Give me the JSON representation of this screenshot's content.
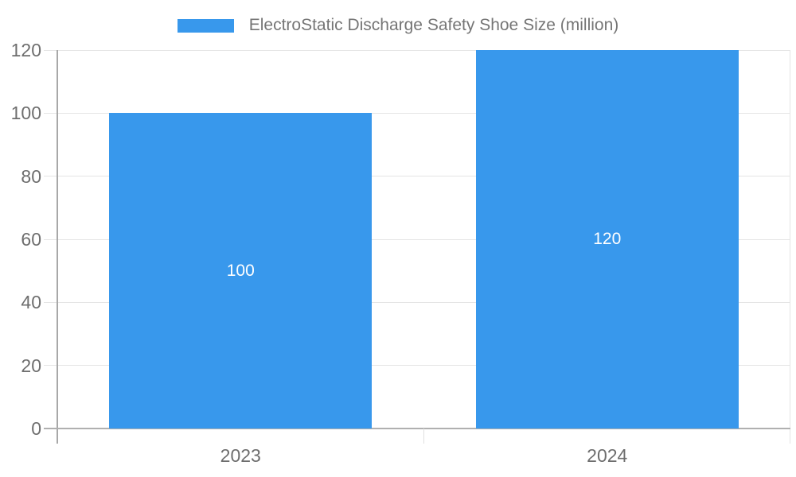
{
  "legend": {
    "label": "ElectroStatic Discharge Safety Shoe Size (million)"
  },
  "chart_data": {
    "type": "bar",
    "title": "ElectroStatic Discharge Safety Shoe Size (million)",
    "categories": [
      "2023",
      "2024"
    ],
    "values": [
      100,
      120
    ],
    "bar_labels": [
      "100",
      "120"
    ],
    "xlabel": "",
    "ylabel": "",
    "ylim": [
      0,
      120
    ],
    "yticks": [
      0,
      20,
      40,
      60,
      80,
      100,
      120
    ],
    "grid": true,
    "legend_position": "top-center",
    "colors": {
      "bar": "#3898ec",
      "bar_label": "#ffffff",
      "gridline": "#e5e5e5",
      "axis_line": "#b0b0b0",
      "tick_label": "#6e6e6e",
      "legend_text": "#757575",
      "background": "#ffffff"
    }
  }
}
